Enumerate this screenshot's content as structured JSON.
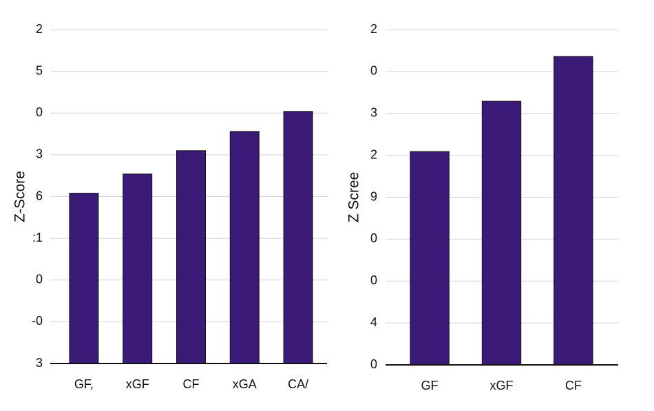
{
  "chart_data": [
    {
      "type": "bar",
      "ylabel": "Z-Score",
      "categories": [
        "GF,",
        "xGF",
        "CF",
        "xGA",
        "CA/"
      ],
      "values": [
        4.08,
        4.54,
        5.1,
        5.56,
        6.04
      ],
      "color": "#3b1a78",
      "ylim": [
        0,
        8
      ],
      "yticks": [
        {
          "value": 0,
          "label": "3"
        },
        {
          "value": 1,
          "label": "-0"
        },
        {
          "value": 2,
          "label": "0"
        },
        {
          "value": 3,
          "label": ":1"
        },
        {
          "value": 4,
          "label": "6"
        },
        {
          "value": 5,
          "label": "3"
        },
        {
          "value": 6,
          "label": "0"
        },
        {
          "value": 7,
          "label": "5"
        },
        {
          "value": 8,
          "label": "2"
        }
      ],
      "grid": true
    },
    {
      "type": "bar",
      "ylabel": "Z Scree",
      "categories": [
        "GF",
        "xGF",
        "CF"
      ],
      "values": [
        5.09,
        6.29,
        7.36
      ],
      "color": "#3b1a78",
      "ylim": [
        0,
        8
      ],
      "yticks": [
        0,
        {
          "value": 1,
          "label": "4"
        },
        {
          "value": 2,
          "label": "0"
        },
        {
          "value": 3,
          "label": "0"
        },
        {
          "value": 4,
          "label": "9"
        },
        {
          "value": 5,
          "label": "2"
        },
        {
          "value": 6,
          "label": "3"
        },
        {
          "value": 7,
          "label": "0"
        },
        {
          "value": 8,
          "label": "2"
        }
      ],
      "grid": true
    }
  ]
}
